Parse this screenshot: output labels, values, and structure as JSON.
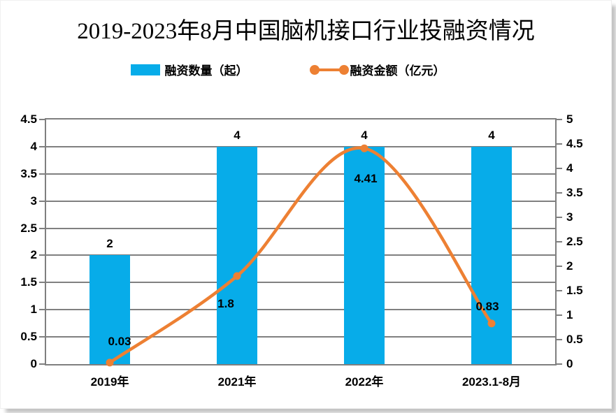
{
  "title": "2019-2023年8月中国脑机接口行业投融资情况",
  "legend": {
    "bars_label": "融资数量（起）",
    "line_label": "融资金额（亿元）"
  },
  "colors": {
    "bar": "#07ace9",
    "line": "#ed8033",
    "grid": "#808080",
    "plot_border": "#7f7f7f",
    "text": "#000000"
  },
  "chart_data": {
    "type": "bar",
    "subtype": "bar+line dual axis",
    "title": "2019-2023年8月中国脑机接口行业投融资情况",
    "categories": [
      "2019年",
      "2021年",
      "2022年",
      "2023.1-8月"
    ],
    "series": [
      {
        "name": "融资数量（起）",
        "type": "bar",
        "axis": "left",
        "values": [
          2,
          4,
          4,
          4
        ],
        "labels": [
          "2",
          "4",
          "4",
          "4"
        ],
        "color": "#07ace9"
      },
      {
        "name": "融资金额（亿元）",
        "type": "line",
        "axis": "right",
        "smooth": true,
        "values": [
          0.03,
          1.8,
          4.41,
          0.83
        ],
        "labels": [
          "0.03",
          "1.8",
          "4.41",
          "0.83"
        ],
        "color": "#ed8033"
      }
    ],
    "left_axis": {
      "min": 0,
      "max": 4.5,
      "step": 0.5,
      "ticks": [
        "0",
        "0.5",
        "1",
        "1.5",
        "2",
        "2.5",
        "3",
        "3.5",
        "4",
        "4.5"
      ]
    },
    "right_axis": {
      "min": 0,
      "max": 5,
      "step": 0.5,
      "ticks": [
        "0",
        "0.5",
        "1",
        "1.5",
        "2",
        "2.5",
        "3",
        "3.5",
        "4",
        "4.5",
        "5"
      ]
    },
    "grid": true,
    "legend_position": "top"
  }
}
